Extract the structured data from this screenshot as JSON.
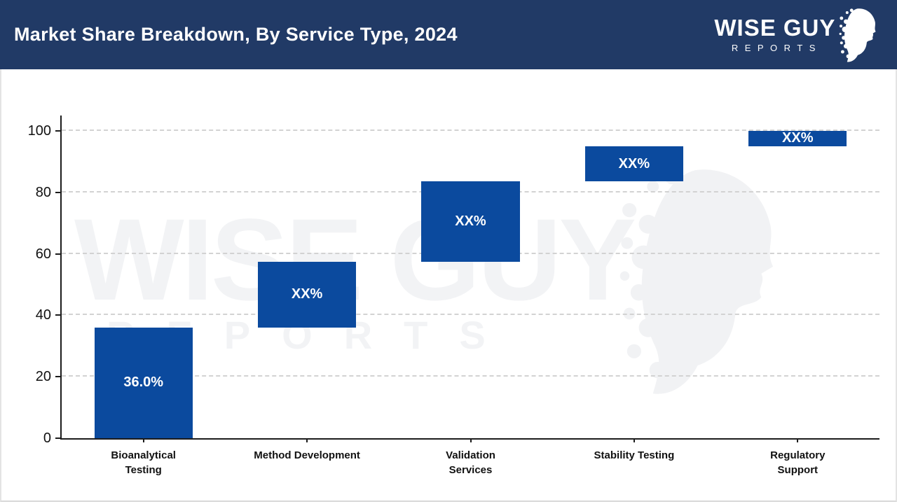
{
  "header": {
    "title": "Market Share Breakdown, By Service Type, 2024",
    "brand_line1": "WISE GUY",
    "brand_line2": "REPORTS"
  },
  "watermark": {
    "line1": "WISE GUY",
    "line2": "REPORTS"
  },
  "colors": {
    "header_bg": "#213a66",
    "bar": "#0b4a9e",
    "gridline": "#d2d2d2",
    "axis": "#1c1c1c",
    "watermark": "#f2f3f5"
  },
  "chart_data": {
    "type": "bar",
    "subtype": "waterfall",
    "title": "Market Share Breakdown, By Service Type, 2024",
    "categories": [
      "Bioanalytical\nTesting",
      "Method Development",
      "Validation\nServices",
      "Stability Testing",
      "Regulatory Support"
    ],
    "segments": [
      {
        "category": "Bioanalytical Testing",
        "start": 0,
        "end": 36,
        "value": 36.0,
        "label": "36.0%"
      },
      {
        "category": "Method Development",
        "start": 36,
        "end": 57.5,
        "value": 21.5,
        "label": "XX%"
      },
      {
        "category": "Validation Services",
        "start": 57.5,
        "end": 83.5,
        "value": 26.0,
        "label": "XX%"
      },
      {
        "category": "Stability Testing",
        "start": 83.5,
        "end": 95,
        "value": 11.5,
        "label": "XX%"
      },
      {
        "category": "Regulatory Support",
        "start": 95,
        "end": 100,
        "value": 5.0,
        "label": "XX%"
      }
    ],
    "yticks": [
      0,
      20,
      40,
      60,
      80,
      100
    ],
    "ylim": [
      0,
      105
    ],
    "xlabel": "",
    "ylabel": "",
    "grid": "horizontal-dashed",
    "legend": "none",
    "bar_color": "#0b4a9e",
    "bar_width_fraction": 0.6
  }
}
